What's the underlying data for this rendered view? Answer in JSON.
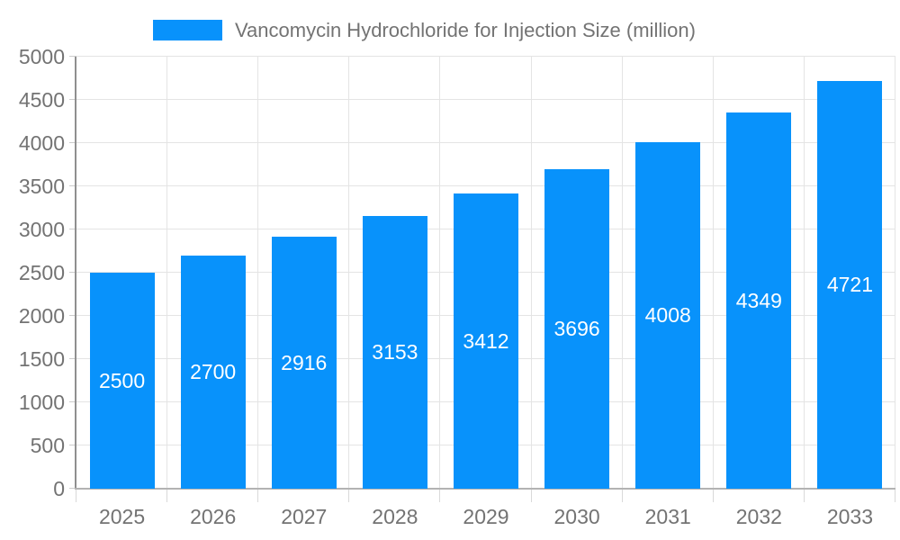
{
  "legend": {
    "label": "Vancomycin Hydrochloride for Injection Size (million)"
  },
  "colors": {
    "bar": "#0892fb",
    "grid": "#e4e4e4",
    "axis_y": "#8f8f8f",
    "axis_x": "#b3b3b3",
    "y_tick": "#cccccc",
    "x_tick": "#d9d9d9",
    "text": "#737373",
    "value_label": "#ffffff",
    "background": "#ffffff"
  },
  "chart_data": {
    "type": "bar",
    "title": "Vancomycin Hydrochloride for Injection Size (million)",
    "series_name": "Vancomycin Hydrochloride for Injection Size (million)",
    "categories": [
      "2025",
      "2026",
      "2027",
      "2028",
      "2029",
      "2030",
      "2031",
      "2032",
      "2033"
    ],
    "values": [
      2500,
      2700,
      2916,
      3153,
      3412,
      3696,
      4008,
      4349,
      4721
    ],
    "xlabel": "",
    "ylabel": "",
    "ylim": [
      0,
      5000
    ],
    "y_ticks": [
      0,
      500,
      1000,
      1500,
      2000,
      2500,
      3000,
      3500,
      4000,
      4500,
      5000
    ],
    "grid": true,
    "legend_position": "top",
    "value_label_position": "inside-center"
  }
}
